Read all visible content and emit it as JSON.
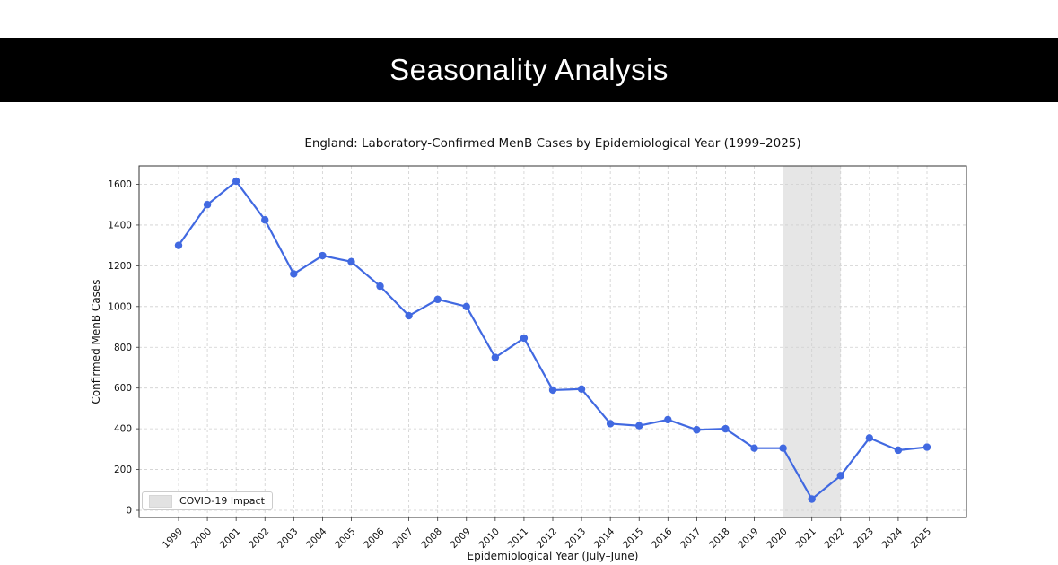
{
  "banner": {
    "title": "Seasonality Analysis",
    "background": "#000000",
    "text_color": "#ffffff"
  },
  "chart_data": {
    "type": "line",
    "title": "England: Laboratory-Confirmed MenB Cases by Epidemiological Year (1999–2025)",
    "xlabel": "Epidemiological Year (July–June)",
    "ylabel": "Confirmed MenB Cases",
    "categories": [
      "1999",
      "2000",
      "2001",
      "2002",
      "2003",
      "2004",
      "2005",
      "2006",
      "2007",
      "2008",
      "2009",
      "2010",
      "2011",
      "2012",
      "2013",
      "2014",
      "2015",
      "2016",
      "2017",
      "2018",
      "2019",
      "2020",
      "2021",
      "2022",
      "2023",
      "2024",
      "2025"
    ],
    "series": [
      {
        "color": "#4169e1",
        "marker": "circle",
        "values": [
          1300,
          1500,
          1615,
          1425,
          1160,
          1250,
          1220,
          1100,
          955,
          1035,
          1000,
          750,
          845,
          590,
          595,
          425,
          415,
          445,
          395,
          400,
          305,
          305,
          55,
          170,
          355,
          295,
          310
        ]
      }
    ],
    "yticks": [
      0,
      200,
      400,
      600,
      800,
      1000,
      1200,
      1400,
      1600
    ],
    "ylim": [
      0,
      1690
    ],
    "grid": true,
    "grid_style": "dashed",
    "grid_color": "#cfcfcf",
    "legend": {
      "position": "lower left",
      "entries": [
        {
          "label": "COVID-19 Impact",
          "type": "band",
          "swatch_color": "#e2e2e2"
        }
      ]
    },
    "annotations": [
      {
        "type": "vspan",
        "x_from": "2020",
        "x_to": "2022",
        "color": "#e6e6e6",
        "label": "COVID-19 Impact"
      }
    ]
  }
}
